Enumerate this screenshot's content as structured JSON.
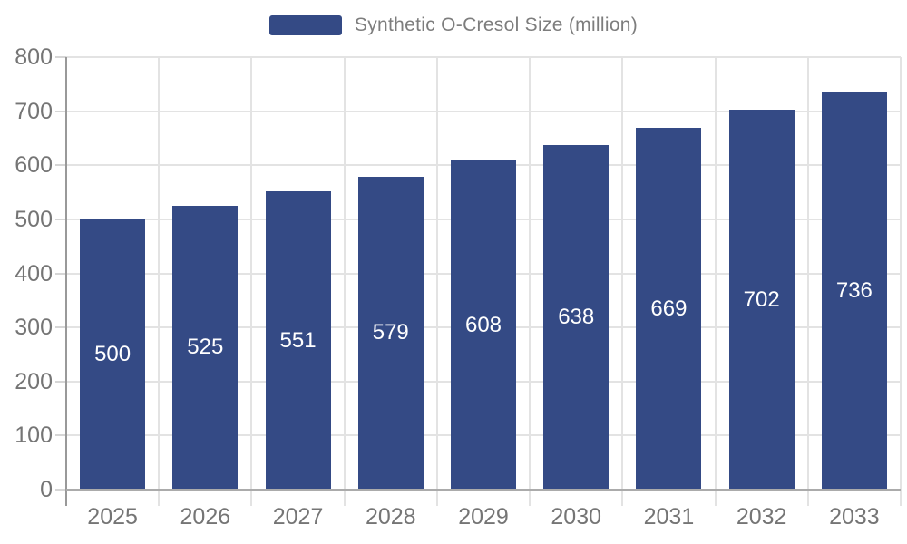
{
  "chart_data": {
    "type": "bar",
    "title": "Synthetic O-Cresol Size (million)",
    "legend": {
      "label": "Synthetic O-Cresol Size (million)",
      "position": "top-center"
    },
    "categories": [
      "2025",
      "2026",
      "2027",
      "2028",
      "2029",
      "2030",
      "2031",
      "2032",
      "2033"
    ],
    "series": [
      {
        "name": "Synthetic O-Cresol Size (million)",
        "values": [
          500,
          525,
          551,
          579,
          608,
          638,
          669,
          702,
          736
        ]
      }
    ],
    "values": [
      500,
      525,
      551,
      579,
      608,
      638,
      669,
      702,
      736
    ],
    "value_labels": [
      "500",
      "525",
      "551",
      "579",
      "608",
      "638",
      "669",
      "702",
      "736"
    ],
    "xlabel": "",
    "ylabel": "",
    "ylim": [
      0,
      800
    ],
    "ytick_interval": 100,
    "yticks": [
      0,
      100,
      200,
      300,
      400,
      500,
      600,
      700,
      800
    ],
    "grid": true,
    "colors": {
      "bar": "#344a85",
      "grid": "#e3e3e3",
      "axis": "#999999",
      "baseline": "#ababab",
      "tick_label": "#757575",
      "value_label": "#ffffff",
      "legend_text": "#7d7d7d",
      "background": "#ffffff"
    }
  }
}
